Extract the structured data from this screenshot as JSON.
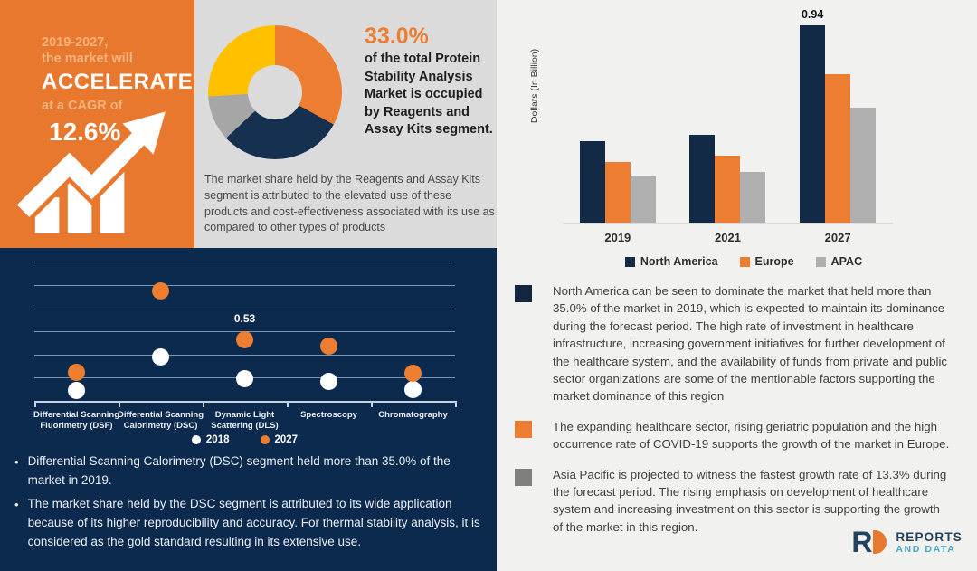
{
  "accelerate_card": {
    "period": "2019-2027,",
    "intro": "the market will",
    "headline": "ACCELERATE",
    "sub": "at a CAGR of",
    "cagr": "12.6%"
  },
  "reagents_section": {
    "highlight_value": "33.0%",
    "highlight_text": "of the total Protein Stability Analysis Market is occupied by Reagents and Assay Kits segment.",
    "caption": "The market share held by the Reagents and Assay Kits segment is attributed to the elevated use of these products and cost-effectiveness associated with its use as compared to other types of products"
  },
  "segment_panel": {
    "bullets": [
      "Differential Scanning Calorimetry (DSC) segment held more than 35.0% of the market in 2019.",
      "The market share held by the DSC segment is attributed to its wide application because of its higher reproducibility and accuracy. For thermal stability analysis, it is considered as the gold standard resulting in its extensive use."
    ]
  },
  "regional_section": {
    "bullets": [
      {
        "color": "#12263F",
        "text": "North America can be seen to dominate the market that held more than 35.0% of the market in 2019, which is expected to maintain its dominance during the forecast period. The high rate of investment in healthcare infrastructure, increasing government initiatives for further development of the healthcare system, and the availability of funds from private and public sector organizations are some of the mentionable factors supporting the market dominance of this region"
      },
      {
        "color": "#ED7D31",
        "text": "The expanding healthcare sector, rising geriatric population and the high occurrence rate of COVID-19 supports the growth of the market in Europe."
      },
      {
        "color": "#7F7F7F",
        "text": "Asia Pacific is projected to witness the fastest growth rate of 13.3% during the forecast period. The rising emphasis on development of healthcare system and increasing investment on this sector is supporting the growth of the market in this region."
      }
    ]
  },
  "logo": {
    "mark": "R",
    "line1": "REPORTS",
    "line2": "AND DATA"
  },
  "chart_data": [
    {
      "id": "product-share-donut",
      "type": "pie",
      "title": "Protein Stability Analysis Market share by product segment",
      "slices": [
        {
          "label": "Reagents and Assay Kits",
          "value": 33,
          "color": "#ED7D31"
        },
        {
          "label": "unlabeled-navy-segment",
          "value": 30,
          "color": "#16304F"
        },
        {
          "label": "unlabeled-gray-segment",
          "value": 11,
          "color": "#A6A6A6"
        },
        {
          "label": "unlabeled-yellow-segment",
          "value": 26,
          "color": "#FFC000"
        }
      ],
      "legend_position": "none"
    },
    {
      "id": "technology-dot-plot",
      "type": "scatter",
      "categories": [
        "Differential Scanning Fluorimetry (DSF)",
        "Differential Scanning Calorimetry (DSC)",
        "Dynamic Light Scattering (DLS)",
        "Spectroscopy",
        "Chromatography"
      ],
      "series": [
        {
          "name": "2018",
          "color": "#FFFFFF",
          "values": [
            0.09,
            0.38,
            0.19,
            0.17,
            0.1
          ]
        },
        {
          "name": "2027",
          "color": "#ED7D31",
          "values": [
            0.25,
            0.95,
            0.53,
            0.47,
            0.24
          ]
        }
      ],
      "annotations": [
        {
          "series": "2027",
          "category": "Dynamic Light Scattering (DLS)",
          "text": "0.53"
        }
      ],
      "ylim": [
        0,
        1.2
      ],
      "grid_step": 0.2,
      "grid": true,
      "legend_position": "bottom"
    },
    {
      "id": "regional-bar-chart",
      "type": "bar",
      "categories": [
        "2019",
        "2021",
        "2027"
      ],
      "series": [
        {
          "name": "North America",
          "color": "#122A45",
          "values": [
            0.39,
            0.42,
            0.94
          ]
        },
        {
          "name": "Europe",
          "color": "#ED7D31",
          "values": [
            0.29,
            0.32,
            0.71
          ]
        },
        {
          "name": "APAC",
          "color": "#AFAFAF",
          "values": [
            0.22,
            0.24,
            0.55
          ]
        }
      ],
      "annotations": [
        {
          "series": "North America",
          "category": "2027",
          "text": "0.94"
        }
      ],
      "xlabel": "",
      "ylabel": "Dollars (In Billion)",
      "ylim": [
        0,
        0.95
      ],
      "grid": false,
      "legend_position": "bottom"
    }
  ]
}
